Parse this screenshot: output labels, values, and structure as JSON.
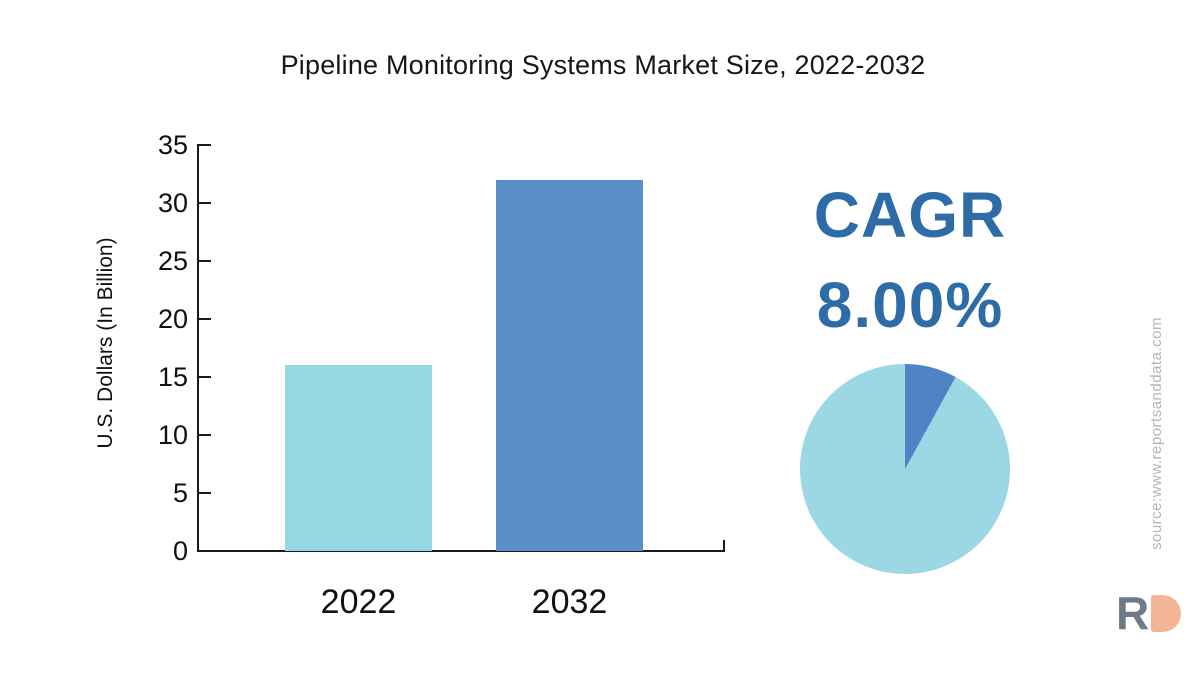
{
  "title": "Pipeline Monitoring Systems Market Size, 2022-2032",
  "chart_data": [
    {
      "type": "bar",
      "title": "Pipeline Monitoring Systems Market Size, 2022-2032",
      "categories": [
        "2022",
        "2032"
      ],
      "values": [
        16,
        32
      ],
      "xlabel": "",
      "ylabel": "U.S. Dollars (In Billion)",
      "ylim": [
        0,
        35
      ],
      "yticks": [
        0,
        5,
        10,
        15,
        20,
        25,
        30,
        35
      ],
      "bar_colors": [
        "#97d7e3",
        "#5a8ec8"
      ],
      "grid": false,
      "legend_position": "none"
    },
    {
      "type": "pie",
      "slices": [
        {
          "name": "CAGR share",
          "value": 8,
          "color": "#4e84c6"
        },
        {
          "name": "remainder",
          "value": 92,
          "color": "#9bd8e4"
        }
      ],
      "start_angle": "12 o'clock",
      "direction": "clockwise"
    }
  ],
  "annotation": {
    "cagr_label": "CAGR",
    "cagr_value": "8.00%",
    "color": "#2d6ca6"
  },
  "source_note": "source:www.reportsanddata.com",
  "logo": {
    "text": "RD",
    "letter_r": "R",
    "r_color": "#6d7a87",
    "d_color": "#f4b496"
  }
}
